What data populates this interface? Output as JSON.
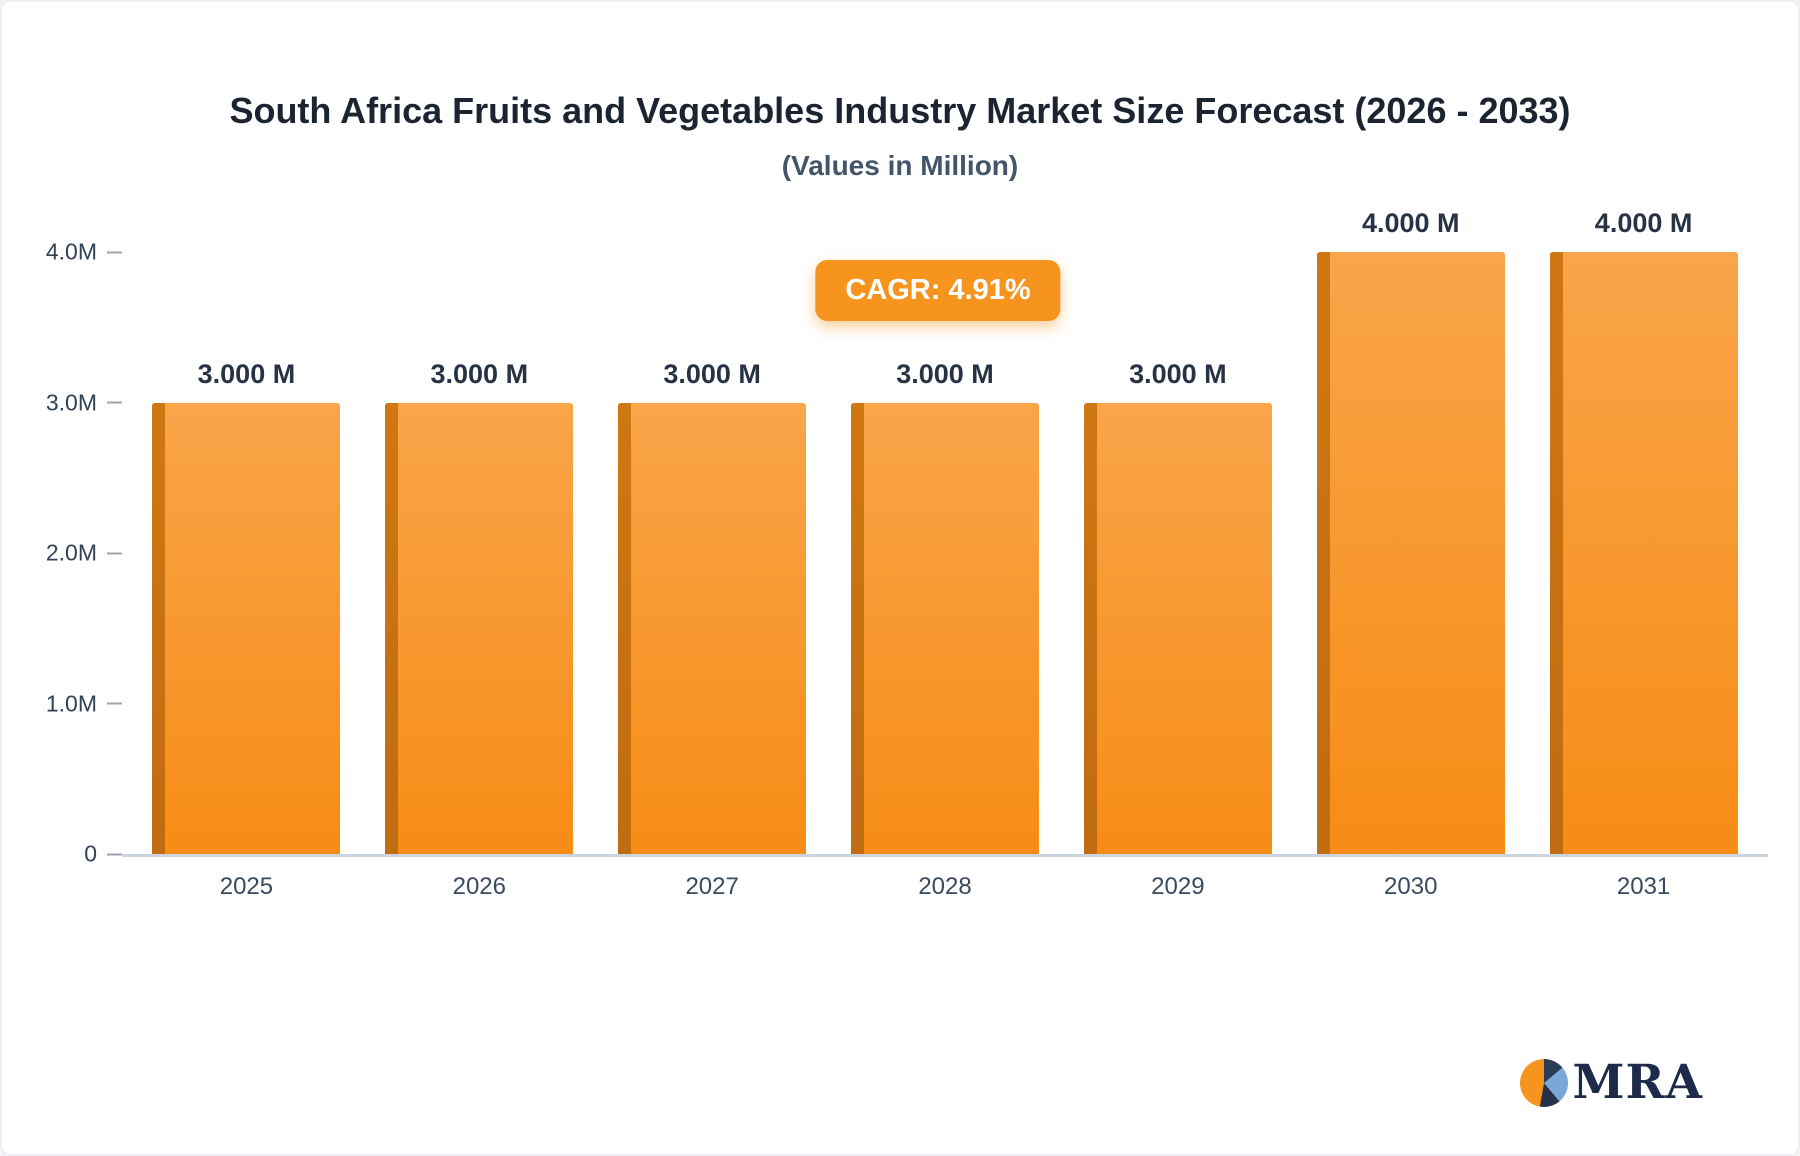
{
  "title": "South Africa Fruits and Vegetables Industry Market Size Forecast (2026 - 2033)",
  "subtitle": "(Values in Million)",
  "cagr_badge": "CAGR: 4.91%",
  "logo": {
    "text": "MRA"
  },
  "colors": {
    "accent": "#f7941e",
    "bar_face_top": "#f9a54a",
    "bar_face_bottom": "#f78c15",
    "bar_side": "#c06c10",
    "title_text": "#1b2430",
    "subtitle_text": "#44546a",
    "axis_text": "#334155",
    "baseline": "#cbd5e1",
    "logo_navy": "#1e2a4a"
  },
  "chart_data": {
    "type": "bar",
    "categories": [
      "2025",
      "2026",
      "2027",
      "2028",
      "2029",
      "2030",
      "2031"
    ],
    "values": [
      3.0,
      3.0,
      3.0,
      3.0,
      3.0,
      4.0,
      4.0
    ],
    "bar_labels": [
      "3.000 M",
      "3.000 M",
      "3.000 M",
      "3.000 M",
      "3.000 M",
      "4.000 M",
      "4.000 M"
    ],
    "title": "South Africa Fruits and Vegetables Industry Market Size Forecast (2026 - 2033)",
    "subtitle": "(Values in Million)",
    "xlabel": "",
    "ylabel": "",
    "ylim": [
      0,
      4
    ],
    "yticks": [
      {
        "value": 0,
        "label": "0"
      },
      {
        "value": 1,
        "label": "1.0M"
      },
      {
        "value": 2,
        "label": "2.0M"
      },
      {
        "value": 3,
        "label": "3.0M"
      },
      {
        "value": 4,
        "label": "4.0M"
      }
    ],
    "grid": false,
    "legend": false,
    "annotations": [
      "CAGR: 4.91%"
    ]
  }
}
